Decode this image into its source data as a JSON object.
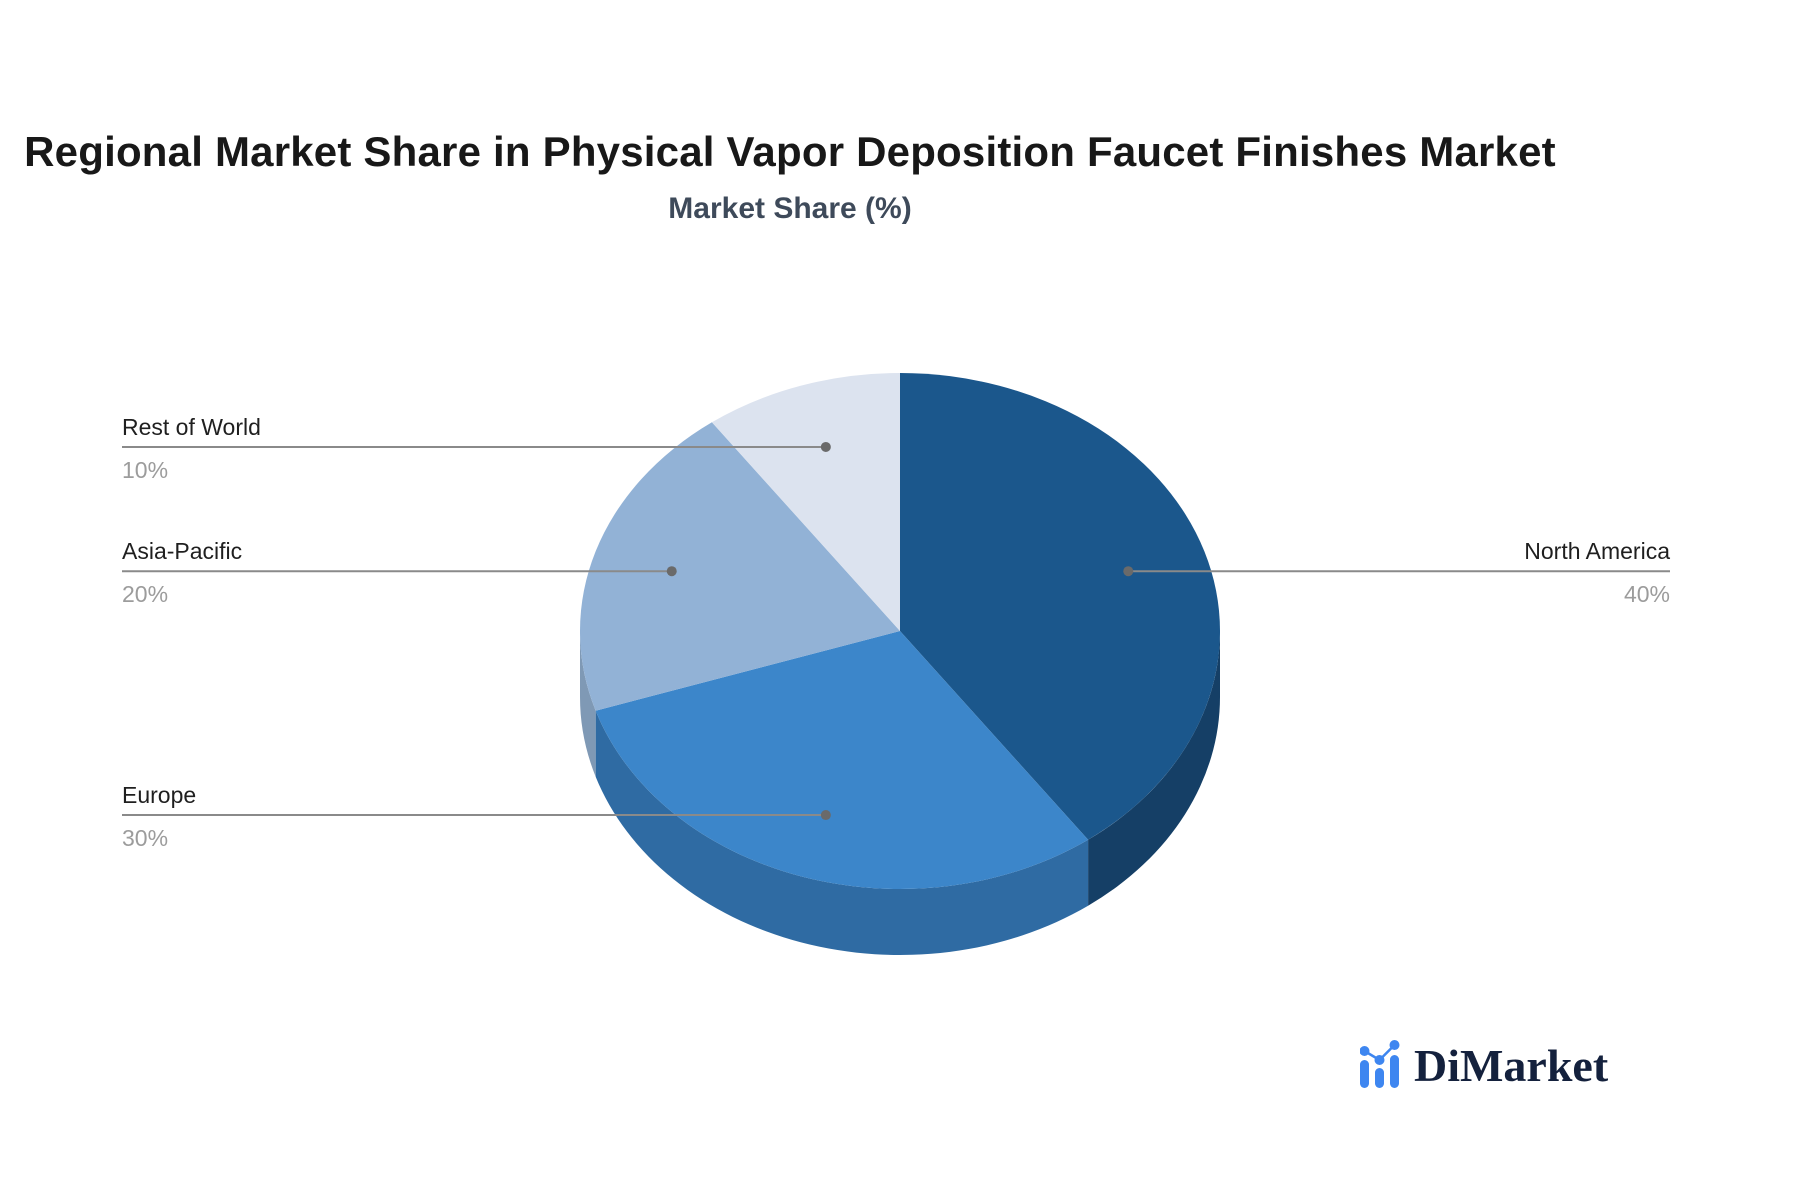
{
  "background": "#ffffff",
  "header": {
    "title": "Regional Market Share in Physical Vapor Deposition Faucet Finishes Market",
    "subtitle": "Market Share (%)"
  },
  "chart_data": {
    "type": "pie",
    "style": "3d",
    "title": "Regional Market Share in Physical Vapor Deposition Faucet Finishes Market",
    "subtitle": "Market Share (%)",
    "unit": "%",
    "start_angle_deg": 0,
    "direction": "clockwise",
    "legend": "none",
    "slices": [
      {
        "label": "North America",
        "value": 40,
        "pct_label": "40%",
        "color": "#1b578c",
        "side_color": "#153f66"
      },
      {
        "label": "Europe",
        "value": 30,
        "pct_label": "30%",
        "color": "#3c86ca",
        "side_color": "#2f6ba3"
      },
      {
        "label": "Asia-Pacific",
        "value": 20,
        "pct_label": "20%",
        "color": "#92b2d6",
        "side_color": "#7f99b5"
      },
      {
        "label": "Rest of World",
        "value": 10,
        "pct_label": "10%",
        "color": "#dce3ef",
        "side_color": "#c3ccdc"
      }
    ],
    "labels_style": {
      "connector_color": "#8a8a8a",
      "dot_color": "#6a6a6a",
      "name_color": "#1f1f1f",
      "pct_color": "#9c9c9c"
    }
  },
  "logo": {
    "text": "DiMarket",
    "icon": "bar-chart-trend-icon",
    "icon_color": "#3e86f0",
    "text_color": "#14213d"
  }
}
